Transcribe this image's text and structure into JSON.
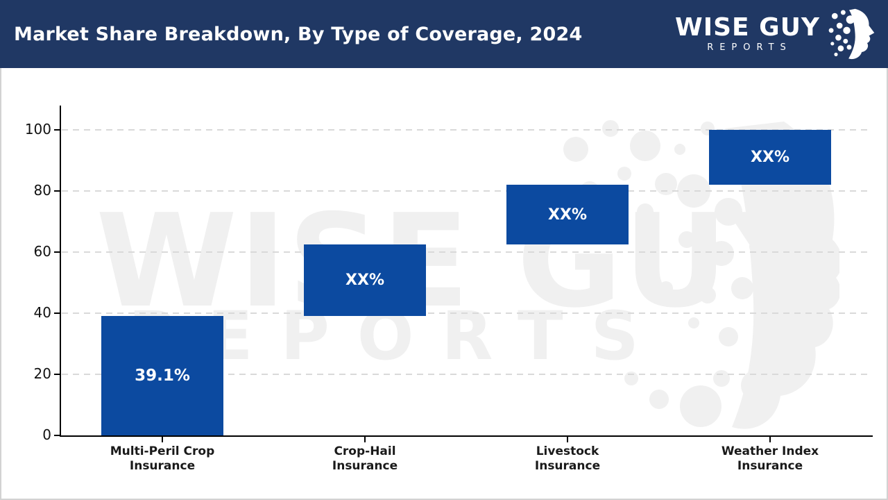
{
  "header": {
    "title": "Market Share Breakdown, By Type of Coverage, 2024",
    "brand": {
      "name_top": "WISE GUY",
      "name_bottom": "REPORTS"
    }
  },
  "watermark": {
    "text_top": "WISE GUY",
    "text_bottom": "REPORTS"
  },
  "chart_data": {
    "type": "bar",
    "variant": "waterfall",
    "title": "Market Share Breakdown, By Type of Coverage, 2024",
    "categories": [
      {
        "line1": "Multi-Peril Crop",
        "line2": "Insurance"
      },
      {
        "line1": "Crop-Hail",
        "line2": "Insurance"
      },
      {
        "line1": "Livestock",
        "line2": "Insurance"
      },
      {
        "line1": "Weather Index",
        "line2": "Insurance"
      }
    ],
    "bars": [
      {
        "label": "39.1%",
        "start": 0,
        "end": 39.1
      },
      {
        "label": "XX%",
        "start": 39.1,
        "end": 62.5
      },
      {
        "label": "XX%",
        "start": 62.5,
        "end": 82
      },
      {
        "label": "XX%",
        "start": 82,
        "end": 100
      }
    ],
    "xlabel": "",
    "ylabel": "",
    "ylim": [
      0,
      100
    ],
    "yticks": [
      0,
      20,
      40,
      60,
      80,
      100
    ],
    "grid": "horizontal-dashed",
    "legend": "none",
    "bar_color": "#0c4aa0",
    "bar_label_color": "#ffffff"
  },
  "colors": {
    "header_bg": "#203864",
    "bar": "#0c4aa0",
    "gridline": "#d9d9d9",
    "axis": "#000000",
    "watermark": "#f0f0f0",
    "edge_line": "#d2d2d2"
  }
}
